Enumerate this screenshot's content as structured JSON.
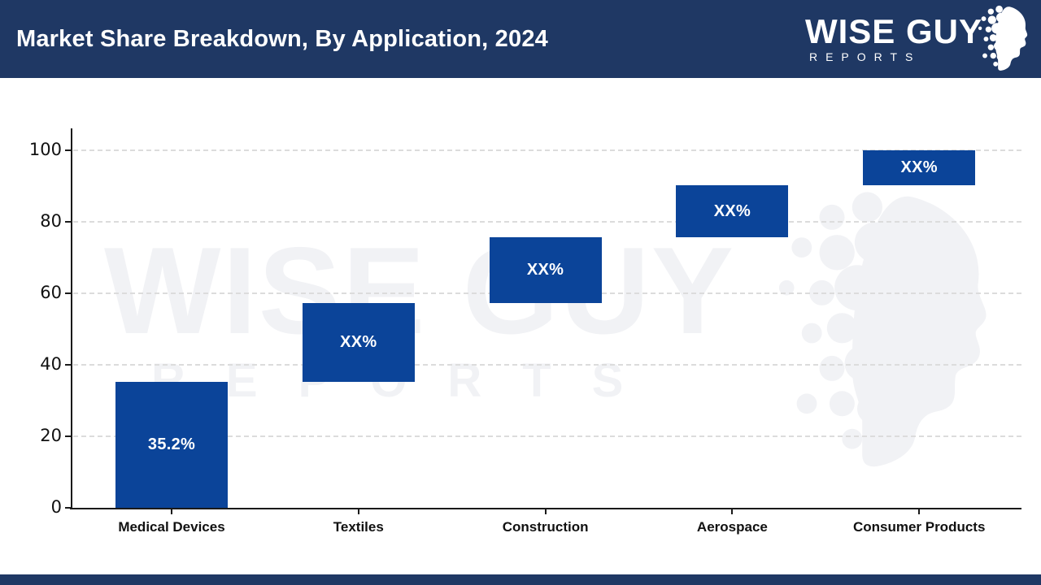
{
  "header": {
    "title": "Market Share Breakdown, By Application, 2024",
    "bg_color": "#1f3864",
    "logo": {
      "line1": "WISE GUY",
      "line2": "REPORTS"
    }
  },
  "watermark": {
    "line1": "WISE GUY",
    "line2": "REPORTS"
  },
  "chart_data": {
    "type": "bar",
    "subtype": "waterfall",
    "title": "Market Share Breakdown, By Application, 2024",
    "categories": [
      "Medical Devices",
      "Textiles",
      "Construction",
      "Aerospace",
      "Consumer Products"
    ],
    "segments": [
      {
        "category": "Medical Devices",
        "start": 0,
        "end": 35.2,
        "label": "35.2%"
      },
      {
        "category": "Textiles",
        "start": 35.2,
        "end": 57.2,
        "label": "XX%"
      },
      {
        "category": "Construction",
        "start": 57.2,
        "end": 75.7,
        "label": "XX%"
      },
      {
        "category": "Aerospace",
        "start": 75.7,
        "end": 90.2,
        "label": "XX%"
      },
      {
        "category": "Consumer Products",
        "start": 90.2,
        "end": 100,
        "label": "XX%"
      }
    ],
    "y_ticks": [
      0,
      20,
      40,
      60,
      80,
      100
    ],
    "ylim": [
      0,
      105.7
    ],
    "xlabel": "",
    "ylabel": "",
    "legend": "none",
    "grid": "horizontal-dashed",
    "bar_color": "#0b4499",
    "bar_label_color": "#ffffff",
    "axis_color": "#1a1a1a",
    "gridline_color": "#dcdcdc"
  }
}
